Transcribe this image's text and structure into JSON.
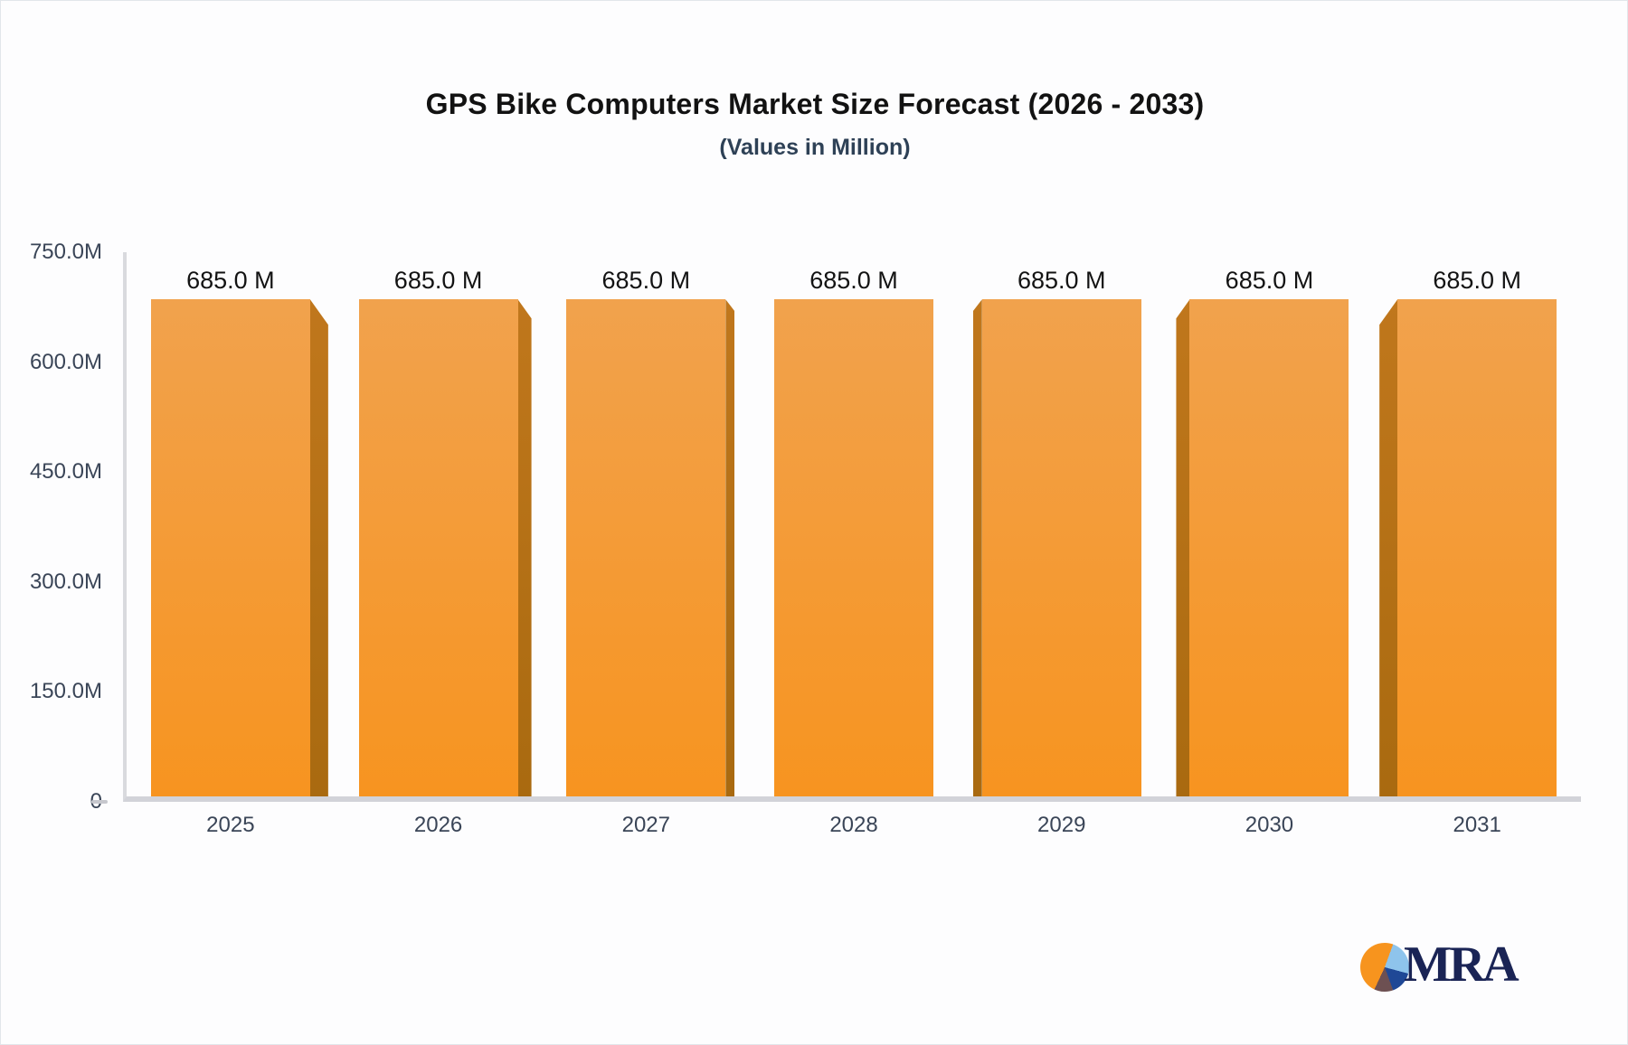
{
  "header": {
    "title": "GPS Bike Computers Market Size Forecast (2026 - 2033)",
    "subtitle": "(Values in Million)"
  },
  "chart_data": {
    "type": "bar",
    "title": "GPS Bike Computers Market Size Forecast (2026 - 2033)",
    "subtitle": "(Values in Million)",
    "categories": [
      "2025",
      "2026",
      "2027",
      "2028",
      "2029",
      "2030",
      "2031"
    ],
    "values": [
      685,
      685,
      685,
      685,
      685,
      685,
      685
    ],
    "value_labels": [
      "685.0 M",
      "685.0 M",
      "685.0 M",
      "685.0 M",
      "685.0 M",
      "685.0 M",
      "685.0 M"
    ],
    "xlabel": "",
    "ylabel": "",
    "ylim": [
      0,
      750
    ],
    "y_tick_labels": [
      "750.0M",
      "600.0M",
      "450.0M",
      "300.0M",
      "150.0M",
      "0"
    ],
    "grid": false,
    "legend": false,
    "style": "pseudo-3d-columns-center-vanishing-point",
    "colors": {
      "bar_face_top": "#f1a24d",
      "bar_face_bottom": "#f79420",
      "bar_side": "#b06c13",
      "axis_line": "#d2d3d9",
      "axis_text": "#3a4557",
      "value_text": "#131313",
      "title_text": "#121212",
      "subtitle_text": "#2e4156"
    }
  },
  "logo": {
    "text": "MRA",
    "icon": "pie-chart-icon",
    "colors": {
      "orange": "#f7941e",
      "light_blue": "#8ec4ec",
      "dark_blue": "#1f4896",
      "brown": "#6d5052",
      "text_navy": "#1a2455"
    }
  }
}
